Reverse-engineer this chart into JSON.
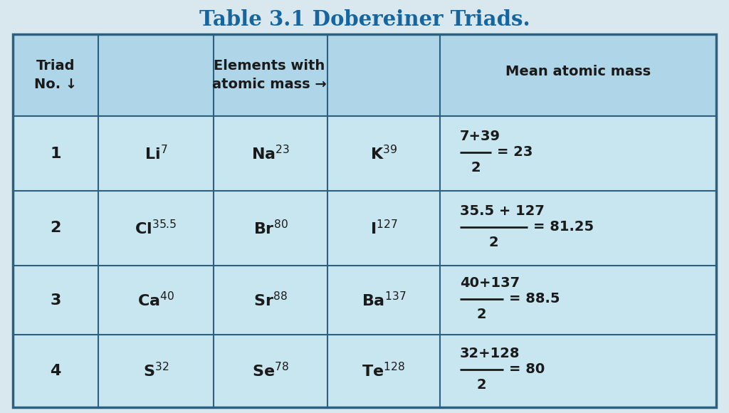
{
  "title": "Table 3.1 Dobereiner Triads.",
  "title_color": "#1565a0",
  "title_fontsize": 21,
  "header_bg": "#aed6e8",
  "data_row_bg": "#c8e6f0",
  "outer_bg": "#d0e8f0",
  "page_bg": "#d8e8ee",
  "border_color": "#2c6080",
  "text_color": "#1a1a1a",
  "fractions": [
    {
      "num": "7+39",
      "den": "2",
      "eq": "= 23"
    },
    {
      "num": "35.5 + 127",
      "den": "2",
      "eq": "= 81.25"
    },
    {
      "num": "40+137",
      "den": "2",
      "eq": "= 88.5"
    },
    {
      "num": "32+128",
      "den": "2",
      "eq": "= 80"
    }
  ]
}
